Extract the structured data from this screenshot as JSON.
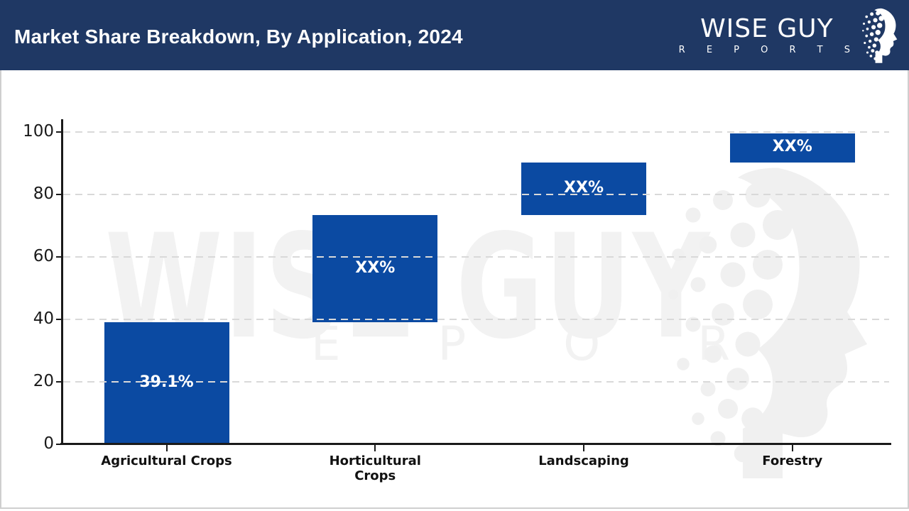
{
  "header": {
    "title": "Market Share Breakdown, By Application, 2024",
    "background_color": "#1F3864",
    "logo": {
      "brand_line1": "WISE GUY",
      "brand_line2": "R E P O R T S"
    }
  },
  "watermark": {
    "line1": "WISE GUY",
    "line2": "R E P O R T S"
  },
  "chart_data": {
    "type": "bar",
    "subtype": "waterfall",
    "title": "Market Share Breakdown, By Application, 2024",
    "categories": [
      "Agricultural Crops",
      "Horticultural Crops",
      "Landscaping",
      "Forestry"
    ],
    "xtick_labels": [
      "Agricultural Crops",
      "Horticultural\nCrops",
      "Landscaping",
      "Forestry"
    ],
    "segments": [
      {
        "category": "Agricultural Crops",
        "start": 0,
        "end": 39.1,
        "label": "39.1%"
      },
      {
        "category": "Horticultural Crops",
        "start": 39.1,
        "end": 73.3,
        "label": "XX%"
      },
      {
        "category": "Landscaping",
        "start": 73.3,
        "end": 90.3,
        "label": "XX%"
      },
      {
        "category": "Forestry",
        "start": 90.3,
        "end": 99.5,
        "label": "XX%"
      }
    ],
    "ylim": [
      0,
      100
    ],
    "yticks": [
      0,
      20,
      40,
      60,
      80,
      100
    ],
    "grid": {
      "axis": "y",
      "style": "dashed",
      "color": "#d9d9d9"
    },
    "bar_color": "#0B4AA2",
    "bar_label_color": "#FFFFFF",
    "axis_color": "#1a1a1a",
    "legend": "none"
  }
}
